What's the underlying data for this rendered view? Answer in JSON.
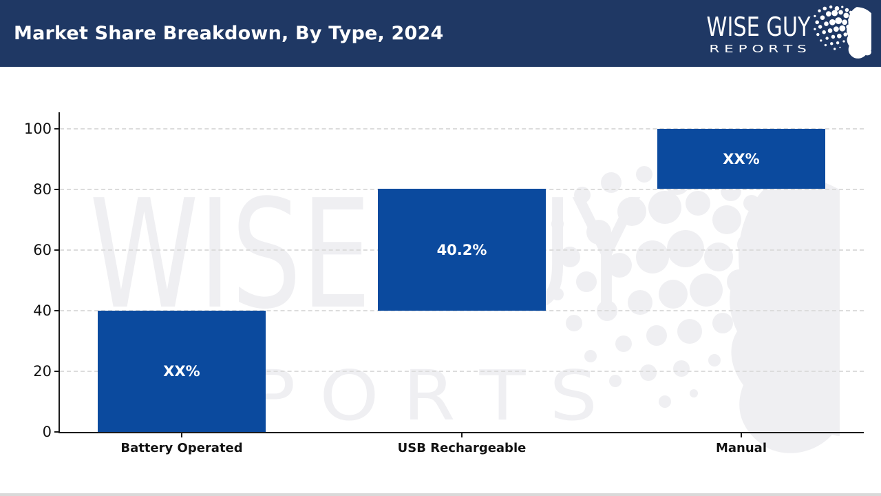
{
  "header": {
    "title": "Market Share Breakdown, By Type, 2024",
    "background_color": "#1f3864"
  },
  "brand": {
    "line1": "WISE GUY",
    "line2": "R E P O R T S"
  },
  "watermark": {
    "line1": "WISE GUY",
    "line2": "R E P O R T S"
  },
  "chart_data": {
    "type": "bar",
    "subtype": "waterfall",
    "title": "Market Share Breakdown, By Type, 2024",
    "xlabel": "",
    "ylabel": "",
    "ylim": [
      0,
      100
    ],
    "yticks": [
      0,
      20,
      40,
      60,
      80,
      100
    ],
    "grid": "horizontal-dashed",
    "legend": "none",
    "categories": [
      "Battery Operated",
      "USB Rechargeable",
      "Manual"
    ],
    "segments": [
      {
        "category": "Battery Operated",
        "start": 0,
        "end": 40,
        "label": "XX%"
      },
      {
        "category": "USB Rechargeable",
        "start": 40,
        "end": 80.2,
        "label": "40.2%"
      },
      {
        "category": "Manual",
        "start": 80.2,
        "end": 100,
        "label": "XX%"
      }
    ],
    "bar_color": "#0b4a9e",
    "bar_label_color": "#ffffff",
    "axis_color": "#1a1a1a",
    "gridline_color": "#dcdcdc"
  }
}
